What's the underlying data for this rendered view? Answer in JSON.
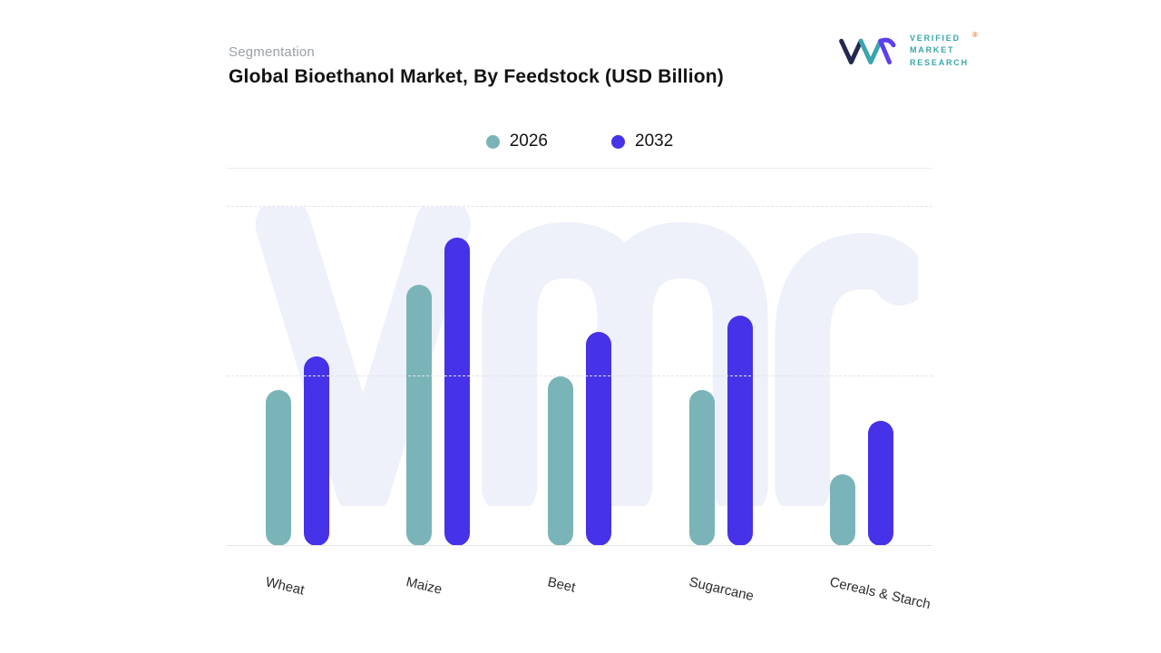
{
  "header": {
    "eyebrow": "Segmentation"
  },
  "logo": {
    "line1": "VERIFIED",
    "line2": "MARKET",
    "line3": "RESEARCH",
    "registered": "®",
    "teal": "#38a6ac",
    "purple": "#5b3ff0",
    "navy": "#232850",
    "orange": "#e0823c"
  },
  "chart_data": {
    "type": "bar",
    "title": "Global Bioethanol Market, By Feedstock (USD Billion)",
    "categories": [
      "Wheat",
      "Maize",
      "Beet",
      "Sugarcane",
      "Cereals & Starch"
    ],
    "series": [
      {
        "name": "2026",
        "color": "#7ab4b8",
        "values": [
          46,
          77,
          50,
          46,
          21
        ]
      },
      {
        "name": "2032",
        "color": "#4632e8",
        "values": [
          56,
          91,
          63,
          68,
          37
        ]
      }
    ],
    "ylim": [
      0,
      100
    ],
    "gridlines": [
      0,
      50,
      100
    ],
    "grid_style": "dashed-horizontal",
    "value_axis_labels_visible": false,
    "legend_position": "top-center",
    "watermark": "vmr",
    "watermark_color": "#eef0fa"
  }
}
